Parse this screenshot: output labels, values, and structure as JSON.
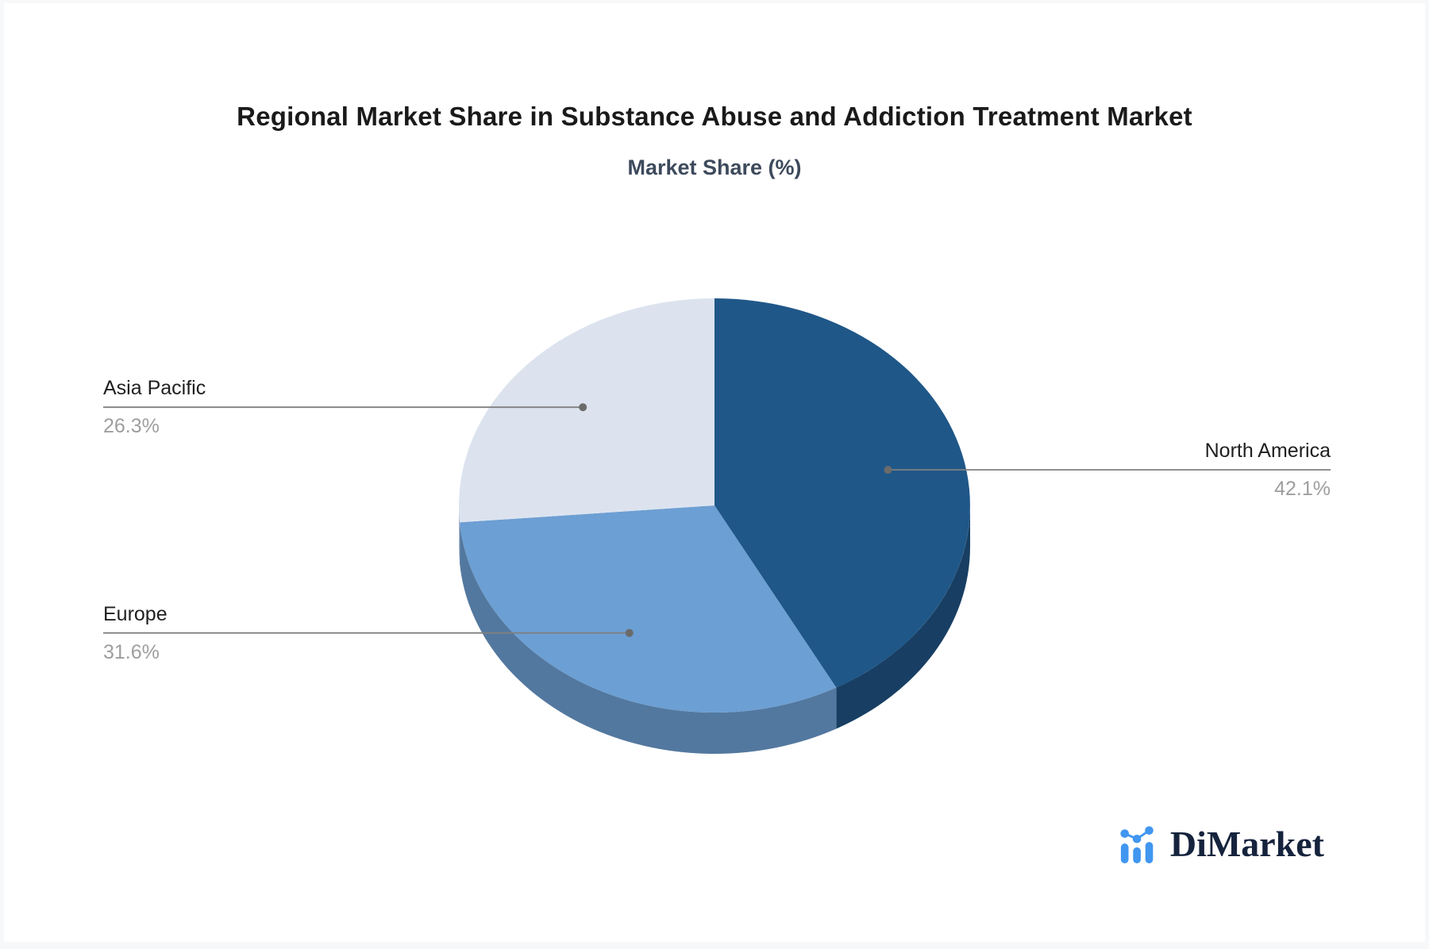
{
  "chart_data": {
    "type": "pie",
    "style": "pie3d",
    "title": "Regional Market Share in Substance Abuse and Addiction Treatment Market",
    "subtitle": "Market Share (%)",
    "unit": "%",
    "start_angle": "12-oclock-clockwise",
    "slices": [
      {
        "label": "North America",
        "value": 42.1,
        "pct_label": "42.1%",
        "color": "#1F5788",
        "side_color": "#183F63"
      },
      {
        "label": "Europe",
        "value": 31.6,
        "pct_label": "31.6%",
        "color": "#6C9FD3",
        "side_color": "#53789F"
      },
      {
        "label": "Asia Pacific",
        "value": 26.3,
        "pct_label": "26.3%",
        "color": "#DCE3EF",
        "side_color": "#A9B7CE"
      }
    ],
    "leader_line_color": "#808080",
    "leader_dot_color": "#6b6b6b",
    "label_text_color": "#1f1f1f",
    "pct_text_color": "#9e9e9e"
  },
  "branding": {
    "logo_text": "DiMarket",
    "logo_icon": "bar-line-chart-icon",
    "logo_text_color": "#15233d",
    "logo_icon_color": "#4196f0"
  }
}
